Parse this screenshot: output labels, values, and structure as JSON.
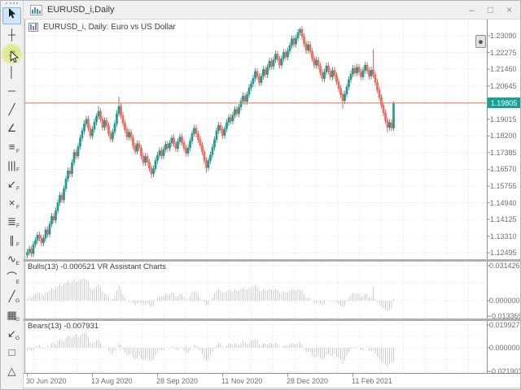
{
  "window": {
    "title": "EURUSD_i,Daily",
    "controls": [
      {
        "name": "minimize",
        "glyph": "–"
      },
      {
        "name": "maximize",
        "glyph": "□"
      },
      {
        "name": "close",
        "glyph": "×"
      }
    ]
  },
  "toolbar": {
    "tools": [
      {
        "name": "cursor",
        "icon": "cursor-icon",
        "glyph": "",
        "state": "selected"
      },
      {
        "name": "crosshair",
        "icon": "crosshair-icon",
        "glyph": "┼"
      },
      {
        "name": "arrow-tool",
        "icon": "green-arrow-icon",
        "glyph": "↗",
        "color": "#3a9f63",
        "state": "mouse-hover"
      },
      {
        "name": "vertical-line",
        "icon": "vertical-line-icon",
        "glyph": "│"
      },
      {
        "name": "horizontal-line",
        "icon": "horizontal-line-icon",
        "glyph": "─"
      },
      {
        "name": "trendline",
        "icon": "trendline-icon",
        "glyph": "╱"
      },
      {
        "name": "trend-by-angle",
        "icon": "angle-icon",
        "glyph": "∠"
      },
      {
        "name": "fibo-retracement",
        "icon": "fibo-retracement-icon",
        "glyph": "≡",
        "letter": "F"
      },
      {
        "name": "fibo-time-zones",
        "icon": "fibo-time-zones-icon",
        "glyph": "|||",
        "letter": "F"
      },
      {
        "name": "fibo-fan",
        "icon": "fibo-fan-icon",
        "glyph": "↙",
        "letter": "F"
      },
      {
        "name": "fibo-arcs",
        "icon": "fibo-arcs-icon",
        "glyph": "×",
        "letter": "F"
      },
      {
        "name": "fibo-expansion",
        "icon": "fibo-expansion-icon",
        "glyph": "≣",
        "letter": "F"
      },
      {
        "name": "fibo-channel",
        "icon": "fibo-channel-icon",
        "glyph": "∥",
        "letter": "F"
      },
      {
        "name": "elliott-impulse-wave",
        "icon": "elliott-impulse-icon",
        "glyph": "∿",
        "letter": "E"
      },
      {
        "name": "elliott-corrective-wave",
        "icon": "elliott-corrective-icon",
        "glyph": "⌒",
        "letter": "E"
      },
      {
        "name": "gann-line",
        "icon": "gann-line-icon",
        "glyph": "╱",
        "letter": "G"
      },
      {
        "name": "gann-grid",
        "icon": "gann-grid-icon",
        "glyph": "▦",
        "letter": "G"
      },
      {
        "name": "gann-fan",
        "icon": "gann-fan-icon",
        "glyph": "↙",
        "letter": "G"
      },
      {
        "name": "rectangle",
        "icon": "rectangle-icon",
        "glyph": "□"
      },
      {
        "name": "triangle",
        "icon": "triangle-icon",
        "glyph": "△"
      }
    ]
  },
  "chart": {
    "header": "EURUSD_i, Daily:  Euro vs US Dollar",
    "badge": {
      "text": "1.19805",
      "bg": "#16a195"
    },
    "colors": {
      "up": "#219a8d",
      "down": "#e8564c",
      "down_body": "#ef6f63",
      "price_line": "#ef7e6a",
      "grid": "#e2e2e2",
      "histogram": "#cccccc",
      "axis_line": "#8f8f8f",
      "separator": "#b0b0b0"
    }
  },
  "panes": {
    "bulls": {
      "header": "Bulls(13) -0.000521 VR Assistant Charts",
      "labels": [
        "0.031426",
        "0.000000",
        "-0.013369"
      ]
    },
    "bears": {
      "header": "Bears(13) -0.007931",
      "labels": [
        "0.019927",
        "0.000000",
        "-0.021901"
      ]
    }
  },
  "axes": {
    "price_ticks": [
      "1.23090",
      "1.22275",
      "1.21460",
      "1.20645",
      "1.19830",
      "1.19015",
      "1.18200",
      "1.17385",
      "1.16570",
      "1.15755",
      "1.14940",
      "1.14125",
      "1.13310",
      "1.12495"
    ],
    "date_ticks": [
      "30 Jun 2020",
      "13 Aug 2020",
      "28 Sep 2020",
      "11 Nov 2020",
      "28 Dec 2020",
      "11 Feb 2021"
    ]
  },
  "chart_data": {
    "type": "candlestick",
    "symbol": "EURUSD_i",
    "timeframe": "Daily",
    "description": "Euro vs US Dollar",
    "current_price": 1.19805,
    "y_axis_ticks": [
      1.2309,
      1.22275,
      1.2146,
      1.20645,
      1.1983,
      1.19015,
      1.182,
      1.17385,
      1.1657,
      1.15755,
      1.1494,
      1.14125,
      1.1331,
      1.12495
    ],
    "x_axis_ticks": [
      "30 Jun 2020",
      "13 Aug 2020",
      "28 Sep 2020",
      "11 Nov 2020",
      "28 Dec 2020",
      "11 Feb 2021"
    ],
    "x_tick_bar_indexes": [
      0,
      32,
      64,
      96,
      128,
      160
    ],
    "indicators": [
      {
        "name": "Bulls Power",
        "period": 13,
        "current": -0.000521,
        "shown_max": 0.031426,
        "shown_min": -0.013369,
        "extra_label": "VR Assistant Charts"
      },
      {
        "name": "Bears Power",
        "period": 13,
        "current": -0.007931,
        "shown_max": 0.019927,
        "shown_min": -0.021901
      }
    ],
    "candles": [
      [
        1.1238,
        1.1268,
        1.1222,
        1.1252
      ],
      [
        1.1252,
        1.1284,
        1.1236,
        1.1268
      ],
      [
        1.1268,
        1.1284,
        1.1229,
        1.1245
      ],
      [
        1.1245,
        1.1306,
        1.1229,
        1.129
      ],
      [
        1.129,
        1.1326,
        1.1274,
        1.131
      ],
      [
        1.131,
        1.1352,
        1.1294,
        1.1336
      ],
      [
        1.1336,
        1.1352,
        1.1306,
        1.1322
      ],
      [
        1.1322,
        1.1338,
        1.1282,
        1.1298
      ],
      [
        1.1298,
        1.1336,
        1.1282,
        1.132
      ],
      [
        1.132,
        1.1378,
        1.1304,
        1.1362
      ],
      [
        1.1362,
        1.1378,
        1.1324,
        1.134
      ],
      [
        1.134,
        1.1406,
        1.1324,
        1.139
      ],
      [
        1.139,
        1.1444,
        1.1374,
        1.1428
      ],
      [
        1.1428,
        1.1444,
        1.1394,
        1.141
      ],
      [
        1.141,
        1.1471,
        1.1394,
        1.1455
      ],
      [
        1.1455,
        1.1511,
        1.1439,
        1.1495
      ],
      [
        1.1495,
        1.1546,
        1.1479,
        1.153
      ],
      [
        1.153,
        1.1546,
        1.1492,
        1.1508
      ],
      [
        1.1508,
        1.1578,
        1.1492,
        1.1562
      ],
      [
        1.1562,
        1.1626,
        1.1546,
        1.161
      ],
      [
        1.161,
        1.1666,
        1.1594,
        1.165
      ],
      [
        1.165,
        1.1666,
        1.1619,
        1.1635
      ],
      [
        1.1635,
        1.1706,
        1.1619,
        1.169
      ],
      [
        1.169,
        1.1756,
        1.1674,
        1.174
      ],
      [
        1.174,
        1.1756,
        1.1706,
        1.1722
      ],
      [
        1.1722,
        1.1784,
        1.1706,
        1.1768
      ],
      [
        1.1768,
        1.1826,
        1.1752,
        1.181
      ],
      [
        1.181,
        1.1861,
        1.1794,
        1.1845
      ],
      [
        1.1845,
        1.1896,
        1.1829,
        1.188
      ],
      [
        1.188,
        1.1918,
        1.1864,
        1.1902
      ],
      [
        1.1902,
        1.1918,
        1.1842,
        1.1858
      ],
      [
        1.1858,
        1.1874,
        1.1804,
        1.182
      ],
      [
        1.182,
        1.1868,
        1.1804,
        1.1852
      ],
      [
        1.1852,
        1.1904,
        1.1836,
        1.1888
      ],
      [
        1.1888,
        1.1931,
        1.1872,
        1.1915
      ],
      [
        1.1915,
        1.1966,
        1.1899,
        1.194
      ],
      [
        1.194,
        1.1956,
        1.1886,
        1.1902
      ],
      [
        1.1902,
        1.1918,
        1.1846,
        1.1862
      ],
      [
        1.1862,
        1.1911,
        1.1846,
        1.1895
      ],
      [
        1.1895,
        1.1911,
        1.1854,
        1.187
      ],
      [
        1.187,
        1.1886,
        1.1816,
        1.1832
      ],
      [
        1.1832,
        1.1848,
        1.1789,
        1.1805
      ],
      [
        1.1805,
        1.1856,
        1.1789,
        1.184
      ],
      [
        1.184,
        1.1896,
        1.1824,
        1.188
      ],
      [
        1.188,
        1.1946,
        1.1864,
        1.193
      ],
      [
        1.193,
        1.2011,
        1.1914,
        1.1965
      ],
      [
        1.1965,
        1.1981,
        1.1904,
        1.192
      ],
      [
        1.192,
        1.1936,
        1.1866,
        1.1882
      ],
      [
        1.1882,
        1.1898,
        1.1834,
        1.185
      ],
      [
        1.185,
        1.1866,
        1.1799,
        1.1815
      ],
      [
        1.1815,
        1.1854,
        1.1799,
        1.1838
      ],
      [
        1.1838,
        1.1854,
        1.1794,
        1.181
      ],
      [
        1.181,
        1.1826,
        1.1756,
        1.1772
      ],
      [
        1.1772,
        1.1788,
        1.1729,
        1.1745
      ],
      [
        1.1745,
        1.1798,
        1.1729,
        1.1782
      ],
      [
        1.1782,
        1.1798,
        1.1744,
        1.176
      ],
      [
        1.176,
        1.1776,
        1.1706,
        1.1722
      ],
      [
        1.1722,
        1.1738,
        1.1674,
        1.169
      ],
      [
        1.169,
        1.1736,
        1.1674,
        1.172
      ],
      [
        1.172,
        1.1736,
        1.1676,
        1.1692
      ],
      [
        1.1692,
        1.1708,
        1.1646,
        1.1662
      ],
      [
        1.1662,
        1.1678,
        1.1612,
        1.1635
      ],
      [
        1.1635,
        1.1676,
        1.1619,
        1.166
      ],
      [
        1.166,
        1.1716,
        1.1644,
        1.17
      ],
      [
        1.17,
        1.1741,
        1.1684,
        1.1725
      ],
      [
        1.1725,
        1.1764,
        1.1709,
        1.1748
      ],
      [
        1.1748,
        1.1764,
        1.1706,
        1.1722
      ],
      [
        1.1722,
        1.1771,
        1.1706,
        1.1755
      ],
      [
        1.1755,
        1.1796,
        1.1739,
        1.178
      ],
      [
        1.178,
        1.1796,
        1.1744,
        1.176
      ],
      [
        1.176,
        1.1801,
        1.1744,
        1.1785
      ],
      [
        1.1785,
        1.1826,
        1.1769,
        1.181
      ],
      [
        1.181,
        1.1826,
        1.1766,
        1.1782
      ],
      [
        1.1782,
        1.1798,
        1.1742,
        1.1758
      ],
      [
        1.1758,
        1.1808,
        1.1742,
        1.1792
      ],
      [
        1.1792,
        1.1831,
        1.1776,
        1.1815
      ],
      [
        1.1815,
        1.1831,
        1.1772,
        1.1788
      ],
      [
        1.1788,
        1.1804,
        1.1744,
        1.176
      ],
      [
        1.176,
        1.1776,
        1.1719,
        1.1735
      ],
      [
        1.1735,
        1.1778,
        1.1719,
        1.1762
      ],
      [
        1.1762,
        1.1811,
        1.1746,
        1.1795
      ],
      [
        1.1795,
        1.1848,
        1.1779,
        1.1832
      ],
      [
        1.1832,
        1.1874,
        1.1816,
        1.1858
      ],
      [
        1.1858,
        1.1874,
        1.1814,
        1.183
      ],
      [
        1.183,
        1.1846,
        1.1786,
        1.1802
      ],
      [
        1.1802,
        1.1818,
        1.1759,
        1.1775
      ],
      [
        1.1775,
        1.1791,
        1.1726,
        1.1742
      ],
      [
        1.1742,
        1.1758,
        1.1684,
        1.17
      ],
      [
        1.17,
        1.1716,
        1.164,
        1.1665
      ],
      [
        1.1665,
        1.1716,
        1.1649,
        1.17
      ],
      [
        1.17,
        1.1744,
        1.1684,
        1.1728
      ],
      [
        1.1728,
        1.1781,
        1.1712,
        1.1765
      ],
      [
        1.1765,
        1.1818,
        1.1749,
        1.1802
      ],
      [
        1.1802,
        1.1861,
        1.1786,
        1.1845
      ],
      [
        1.1845,
        1.1888,
        1.1829,
        1.1872
      ],
      [
        1.1872,
        1.1888,
        1.1834,
        1.185
      ],
      [
        1.185,
        1.1866,
        1.1806,
        1.1822
      ],
      [
        1.1822,
        1.1871,
        1.1806,
        1.1855
      ],
      [
        1.1855,
        1.1901,
        1.1839,
        1.1885
      ],
      [
        1.1885,
        1.1926,
        1.1869,
        1.191
      ],
      [
        1.191,
        1.1926,
        1.1876,
        1.1892
      ],
      [
        1.1892,
        1.1938,
        1.1876,
        1.1922
      ],
      [
        1.1922,
        1.1966,
        1.1906,
        1.195
      ],
      [
        1.195,
        1.1966,
        1.1912,
        1.1928
      ],
      [
        1.1928,
        1.1976,
        1.1912,
        1.196
      ],
      [
        1.196,
        1.2006,
        1.1944,
        1.199
      ],
      [
        1.199,
        1.2031,
        1.1974,
        1.2015
      ],
      [
        1.2015,
        1.2031,
        1.1972,
        1.1988
      ],
      [
        1.1988,
        1.2038,
        1.1972,
        1.2022
      ],
      [
        1.2022,
        1.2071,
        1.2006,
        1.2055
      ],
      [
        1.2055,
        1.2091,
        1.2039,
        1.2075
      ],
      [
        1.2075,
        1.2118,
        1.2059,
        1.2102
      ],
      [
        1.2102,
        1.2151,
        1.2086,
        1.2135
      ],
      [
        1.2135,
        1.2151,
        1.2094,
        1.211
      ],
      [
        1.211,
        1.2126,
        1.2064,
        1.208
      ],
      [
        1.208,
        1.2128,
        1.2064,
        1.2112
      ],
      [
        1.2112,
        1.2161,
        1.2096,
        1.2145
      ],
      [
        1.2145,
        1.2161,
        1.2104,
        1.212
      ],
      [
        1.212,
        1.2171,
        1.2104,
        1.2155
      ],
      [
        1.2155,
        1.2201,
        1.2139,
        1.2185
      ],
      [
        1.2185,
        1.2201,
        1.2144,
        1.216
      ],
      [
        1.216,
        1.2208,
        1.2144,
        1.2192
      ],
      [
        1.2192,
        1.2236,
        1.2176,
        1.222
      ],
      [
        1.222,
        1.2236,
        1.2179,
        1.2195
      ],
      [
        1.2195,
        1.2211,
        1.2149,
        1.2165
      ],
      [
        1.2165,
        1.2214,
        1.2149,
        1.2198
      ],
      [
        1.2198,
        1.2244,
        1.2182,
        1.2228
      ],
      [
        1.2228,
        1.2244,
        1.2189,
        1.2205
      ],
      [
        1.2205,
        1.2251,
        1.2189,
        1.2235
      ],
      [
        1.2235,
        1.2278,
        1.2219,
        1.2262
      ],
      [
        1.2262,
        1.2311,
        1.2246,
        1.2295
      ],
      [
        1.2295,
        1.2311,
        1.2252,
        1.2268
      ],
      [
        1.2268,
        1.2314,
        1.2252,
        1.2298
      ],
      [
        1.2298,
        1.2341,
        1.2282,
        1.2325
      ],
      [
        1.2325,
        1.2349,
        1.2309,
        1.234
      ],
      [
        1.234,
        1.2356,
        1.2289,
        1.2305
      ],
      [
        1.2305,
        1.2321,
        1.2254,
        1.227
      ],
      [
        1.227,
        1.2286,
        1.2222,
        1.2238
      ],
      [
        1.2238,
        1.2281,
        1.2222,
        1.2265
      ],
      [
        1.2265,
        1.2281,
        1.2216,
        1.2232
      ],
      [
        1.2232,
        1.2248,
        1.2182,
        1.2198
      ],
      [
        1.2198,
        1.2214,
        1.2149,
        1.2165
      ],
      [
        1.2165,
        1.2206,
        1.2149,
        1.219
      ],
      [
        1.219,
        1.2206,
        1.2146,
        1.2162
      ],
      [
        1.2162,
        1.2178,
        1.2114,
        1.213
      ],
      [
        1.213,
        1.2146,
        1.2084,
        1.21
      ],
      [
        1.21,
        1.2148,
        1.2084,
        1.2132
      ],
      [
        1.2132,
        1.2178,
        1.2116,
        1.2162
      ],
      [
        1.2162,
        1.2178,
        1.2119,
        1.2135
      ],
      [
        1.2135,
        1.2151,
        1.2092,
        1.2108
      ],
      [
        1.2108,
        1.2156,
        1.2092,
        1.214
      ],
      [
        1.214,
        1.2156,
        1.2099,
        1.2115
      ],
      [
        1.2115,
        1.2131,
        1.2069,
        1.2085
      ],
      [
        1.2085,
        1.2101,
        1.2036,
        1.2052
      ],
      [
        1.2052,
        1.2068,
        1.2006,
        1.2022
      ],
      [
        1.2022,
        1.2038,
        1.1952,
        1.1992
      ],
      [
        1.1992,
        1.2041,
        1.1976,
        1.2025
      ],
      [
        1.2025,
        1.2076,
        1.2009,
        1.206
      ],
      [
        1.206,
        1.2111,
        1.2044,
        1.2095
      ],
      [
        1.2095,
        1.2138,
        1.2079,
        1.2122
      ],
      [
        1.2122,
        1.2166,
        1.2106,
        1.215
      ],
      [
        1.215,
        1.2166,
        1.2112,
        1.2128
      ],
      [
        1.2128,
        1.2171,
        1.2112,
        1.2155
      ],
      [
        1.2155,
        1.2171,
        1.2116,
        1.2132
      ],
      [
        1.2132,
        1.2148,
        1.2092,
        1.2108
      ],
      [
        1.2108,
        1.2156,
        1.2092,
        1.214
      ],
      [
        1.214,
        1.2181,
        1.2124,
        1.2165
      ],
      [
        1.2165,
        1.2181,
        1.2122,
        1.2138
      ],
      [
        1.2138,
        1.2154,
        1.2096,
        1.2112
      ],
      [
        1.2112,
        1.2158,
        1.2096,
        1.2142
      ],
      [
        1.2142,
        1.2243,
        1.2102,
        1.2118
      ],
      [
        1.2118,
        1.2134,
        1.2066,
        1.2082
      ],
      [
        1.2082,
        1.2098,
        1.2029,
        1.2045
      ],
      [
        1.2045,
        1.2061,
        1.1992,
        1.2008
      ],
      [
        1.2008,
        1.2024,
        1.1954,
        1.197
      ],
      [
        1.197,
        1.1986,
        1.1916,
        1.1932
      ],
      [
        1.1932,
        1.1948,
        1.1879,
        1.1895
      ],
      [
        1.1895,
        1.1911,
        1.1836,
        1.1862
      ],
      [
        1.1862,
        1.1901,
        1.1846,
        1.1885
      ],
      [
        1.1885,
        1.1901,
        1.1842,
        1.1858
      ],
      [
        1.1858,
        1.199,
        1.1844,
        1.19805
      ]
    ]
  }
}
